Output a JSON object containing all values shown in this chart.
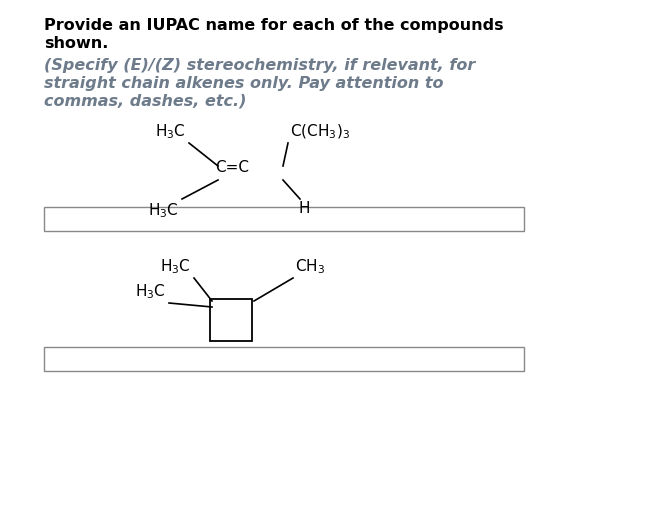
{
  "background_color": "#ffffff",
  "text_color": "#000000",
  "gray_color": "#6e7b8b",
  "box_color": "#aaaaaa",
  "title_fontsize": 11.5,
  "subtitle_fontsize": 11.5,
  "mol_fontsize": 11.0,
  "lw": 1.2,
  "title_lines": [
    "Provide an IUPAC name for each of the compounds",
    "shown."
  ],
  "subtitle_lines": [
    "(Specify (E)/(Z) stereochemistry, if relevant, for",
    "straight chain alkenes only. Pay attention to",
    "commas, dashes, etc.)"
  ]
}
